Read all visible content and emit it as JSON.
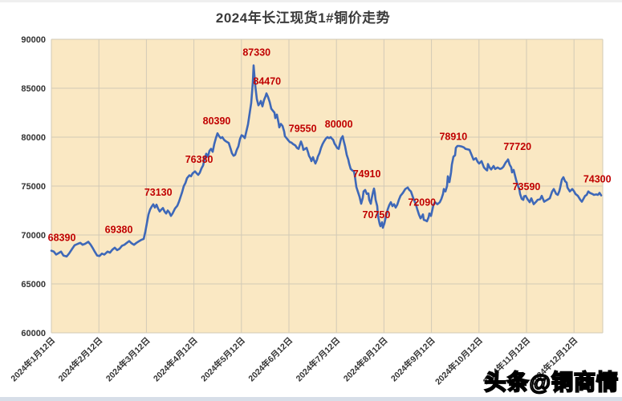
{
  "title": "2024年长江现货1#铜价走势",
  "watermark": "头条@铜商情",
  "chart_data": {
    "type": "line",
    "title": "2024年长江现货1#铜价走势",
    "series_name": "长江现货1#铜价",
    "ylim": [
      60000,
      90000
    ],
    "ytick_step": 5000,
    "yticks": [
      90000,
      85000,
      80000,
      75000,
      70000,
      65000,
      60000
    ],
    "xtick_labels": [
      "2024年1月12日",
      "2024年2月12日",
      "2024年3月12日",
      "2024年4月12日",
      "2024年5月12日",
      "2024年6月12日",
      "2024年7月12日",
      "2024年8月12日",
      "2024年9月12日",
      "2024年10月12日",
      "2024年11月12日",
      "2024年12月12日"
    ],
    "x_unit": "months_since_2024-01-12",
    "x_range": [
      0,
      11.6
    ],
    "grid": true,
    "legend": "none",
    "colors": {
      "line": "#3e68b8",
      "data_label": "#c00000",
      "plot_bg": "#fae8c3",
      "gridline": "#d2cab6",
      "axis_text": "#333333",
      "title_text": "#3b3b3b"
    },
    "key_points": [
      {
        "label": "68390",
        "value": 68390
      },
      {
        "label": "69380",
        "value": 69380
      },
      {
        "label": "73130",
        "value": 73130
      },
      {
        "label": "76380",
        "value": 76380
      },
      {
        "label": "80390",
        "value": 80390
      },
      {
        "label": "87330",
        "value": 87330
      },
      {
        "label": "84470",
        "value": 84470
      },
      {
        "label": "79550",
        "value": 79550
      },
      {
        "label": "80000",
        "value": 80000
      },
      {
        "label": "74910",
        "value": 74910
      },
      {
        "label": "70750",
        "value": 70750
      },
      {
        "label": "72090",
        "value": 72090
      },
      {
        "label": "78910",
        "value": 78910
      },
      {
        "label": "77720",
        "value": 77720
      },
      {
        "label": "73590",
        "value": 73590
      },
      {
        "label": "74300",
        "value": 74300
      }
    ],
    "data_labels": [
      {
        "text": "68390",
        "m": 0.22,
        "value": 68390,
        "dy": -16
      },
      {
        "text": "69380",
        "m": 1.42,
        "value": 69380,
        "dy": -14
      },
      {
        "text": "73130",
        "m": 2.25,
        "value": 73130,
        "dy": -15
      },
      {
        "text": "76380",
        "m": 3.11,
        "value": 76380,
        "dy": -16
      },
      {
        "text": "80390",
        "m": 3.48,
        "value": 80390,
        "dy": -15
      },
      {
        "text": "87330",
        "m": 4.32,
        "value": 87330,
        "dy": -16
      },
      {
        "text": "84470",
        "m": 4.54,
        "value": 84470,
        "dy": -15
      },
      {
        "text": "79550",
        "m": 5.29,
        "value": 79550,
        "dy": -16
      },
      {
        "text": "80000",
        "m": 6.05,
        "value": 80000,
        "dy": -16
      },
      {
        "text": "74910",
        "m": 6.64,
        "value": 74910,
        "dy": -16
      },
      {
        "text": "70750",
        "m": 6.84,
        "value": 70750,
        "dy": -16
      },
      {
        "text": "72090",
        "m": 7.8,
        "value": 72090,
        "dy": -15
      },
      {
        "text": "78910",
        "m": 8.46,
        "value": 78910,
        "dy": -14
      },
      {
        "text": "77720",
        "m": 9.81,
        "value": 77720,
        "dy": -16
      },
      {
        "text": "73590",
        "m": 10.0,
        "value": 73590,
        "dy": -16
      },
      {
        "text": "74300",
        "m": 11.49,
        "value": 74300,
        "dy": -17
      }
    ],
    "points": [
      [
        0.0,
        68390
      ],
      [
        0.051,
        68300
      ],
      [
        0.101,
        68000
      ],
      [
        0.152,
        68150
      ],
      [
        0.203,
        68300
      ],
      [
        0.253,
        67900
      ],
      [
        0.321,
        67800
      ],
      [
        0.372,
        68100
      ],
      [
        0.439,
        68600
      ],
      [
        0.49,
        68950
      ],
      [
        0.557,
        69100
      ],
      [
        0.608,
        69200
      ],
      [
        0.659,
        69000
      ],
      [
        0.709,
        69100
      ],
      [
        0.777,
        69300
      ],
      [
        0.828,
        69000
      ],
      [
        0.878,
        68600
      ],
      [
        0.912,
        68300
      ],
      [
        0.963,
        67900
      ],
      [
        1.014,
        67850
      ],
      [
        1.064,
        68100
      ],
      [
        1.115,
        68000
      ],
      [
        1.182,
        68300
      ],
      [
        1.233,
        68200
      ],
      [
        1.284,
        68500
      ],
      [
        1.334,
        68700
      ],
      [
        1.385,
        68450
      ],
      [
        1.436,
        68600
      ],
      [
        1.486,
        68900
      ],
      [
        1.537,
        69000
      ],
      [
        1.588,
        69200
      ],
      [
        1.639,
        69380
      ],
      [
        1.689,
        69150
      ],
      [
        1.74,
        69000
      ],
      [
        1.791,
        69200
      ],
      [
        1.841,
        69350
      ],
      [
        1.892,
        69500
      ],
      [
        1.943,
        69600
      ],
      [
        1.976,
        70300
      ],
      [
        2.01,
        71200
      ],
      [
        2.044,
        72100
      ],
      [
        2.078,
        72600
      ],
      [
        2.111,
        72900
      ],
      [
        2.145,
        73130
      ],
      [
        2.179,
        72800
      ],
      [
        2.213,
        73100
      ],
      [
        2.247,
        72700
      ],
      [
        2.28,
        72400
      ],
      [
        2.314,
        72600
      ],
      [
        2.348,
        72750
      ],
      [
        2.382,
        72400
      ],
      [
        2.416,
        72200
      ],
      [
        2.449,
        72500
      ],
      [
        2.483,
        72300
      ],
      [
        2.517,
        71950
      ],
      [
        2.551,
        72200
      ],
      [
        2.601,
        72700
      ],
      [
        2.652,
        73000
      ],
      [
        2.686,
        73400
      ],
      [
        2.72,
        73900
      ],
      [
        2.753,
        74400
      ],
      [
        2.787,
        75000
      ],
      [
        2.821,
        75300
      ],
      [
        2.855,
        75800
      ],
      [
        2.905,
        76100
      ],
      [
        2.939,
        76000
      ],
      [
        2.973,
        76300
      ],
      [
        3.024,
        76500
      ],
      [
        3.057,
        76300
      ],
      [
        3.091,
        76150
      ],
      [
        3.125,
        76380
      ],
      [
        3.159,
        76800
      ],
      [
        3.193,
        77100
      ],
      [
        3.226,
        77800
      ],
      [
        3.26,
        78300
      ],
      [
        3.294,
        78000
      ],
      [
        3.328,
        78600
      ],
      [
        3.361,
        78800
      ],
      [
        3.395,
        78500
      ],
      [
        3.429,
        79300
      ],
      [
        3.463,
        79900
      ],
      [
        3.497,
        80390
      ],
      [
        3.53,
        80100
      ],
      [
        3.564,
        79900
      ],
      [
        3.598,
        80000
      ],
      [
        3.632,
        79750
      ],
      [
        3.666,
        79600
      ],
      [
        3.699,
        79500
      ],
      [
        3.733,
        79400
      ],
      [
        3.767,
        78900
      ],
      [
        3.801,
        78350
      ],
      [
        3.834,
        78100
      ],
      [
        3.868,
        78200
      ],
      [
        3.902,
        78700
      ],
      [
        3.936,
        79050
      ],
      [
        3.97,
        79800
      ],
      [
        4.003,
        80200
      ],
      [
        4.037,
        80100
      ],
      [
        4.071,
        79900
      ],
      [
        4.105,
        80600
      ],
      [
        4.139,
        81300
      ],
      [
        4.172,
        82400
      ],
      [
        4.206,
        83500
      ],
      [
        4.223,
        84550
      ],
      [
        4.24,
        85600
      ],
      [
        4.257,
        87330
      ],
      [
        4.274,
        86300
      ],
      [
        4.291,
        85300
      ],
      [
        4.307,
        84600
      ],
      [
        4.324,
        83900
      ],
      [
        4.358,
        83250
      ],
      [
        4.392,
        83500
      ],
      [
        4.409,
        83700
      ],
      [
        4.443,
        83150
      ],
      [
        4.476,
        83800
      ],
      [
        4.51,
        84200
      ],
      [
        4.527,
        84470
      ],
      [
        4.561,
        84100
      ],
      [
        4.595,
        83600
      ],
      [
        4.628,
        82900
      ],
      [
        4.662,
        82700
      ],
      [
        4.696,
        82500
      ],
      [
        4.713,
        81950
      ],
      [
        4.747,
        82300
      ],
      [
        4.78,
        81500
      ],
      [
        4.797,
        81000
      ],
      [
        4.831,
        81350
      ],
      [
        4.865,
        81150
      ],
      [
        4.899,
        80600
      ],
      [
        4.916,
        80100
      ],
      [
        4.949,
        79900
      ],
      [
        4.983,
        79700
      ],
      [
        5.017,
        79500
      ],
      [
        5.051,
        79450
      ],
      [
        5.084,
        79300
      ],
      [
        5.135,
        79150
      ],
      [
        5.169,
        78900
      ],
      [
        5.203,
        78800
      ],
      [
        5.236,
        79300
      ],
      [
        5.253,
        79550
      ],
      [
        5.287,
        79100
      ],
      [
        5.304,
        78700
      ],
      [
        5.338,
        78800
      ],
      [
        5.372,
        78900
      ],
      [
        5.405,
        78400
      ],
      [
        5.422,
        78100
      ],
      [
        5.456,
        77800
      ],
      [
        5.473,
        77550
      ],
      [
        5.507,
        77950
      ],
      [
        5.524,
        77700
      ],
      [
        5.557,
        77300
      ],
      [
        5.591,
        77700
      ],
      [
        5.608,
        78000
      ],
      [
        5.642,
        78350
      ],
      [
        5.676,
        78900
      ],
      [
        5.709,
        79300
      ],
      [
        5.743,
        79600
      ],
      [
        5.777,
        79850
      ],
      [
        5.811,
        80000
      ],
      [
        5.845,
        79900
      ],
      [
        5.878,
        80000
      ],
      [
        5.912,
        79800
      ],
      [
        5.929,
        79750
      ],
      [
        5.963,
        79300
      ],
      [
        5.98,
        79200
      ],
      [
        6.014,
        78900
      ],
      [
        6.047,
        78800
      ],
      [
        6.081,
        79500
      ],
      [
        6.098,
        79850
      ],
      [
        6.132,
        80100
      ],
      [
        6.149,
        79700
      ],
      [
        6.182,
        79050
      ],
      [
        6.216,
        78200
      ],
      [
        6.25,
        77700
      ],
      [
        6.267,
        77300
      ],
      [
        6.301,
        76750
      ],
      [
        6.334,
        76600
      ],
      [
        6.368,
        76500
      ],
      [
        6.385,
        76100
      ],
      [
        6.419,
        74910
      ],
      [
        6.453,
        74400
      ],
      [
        6.486,
        73900
      ],
      [
        6.52,
        73200
      ],
      [
        6.554,
        73800
      ],
      [
        6.571,
        74450
      ],
      [
        6.605,
        74600
      ],
      [
        6.639,
        74200
      ],
      [
        6.672,
        74250
      ],
      [
        6.689,
        73600
      ],
      [
        6.723,
        73200
      ],
      [
        6.74,
        73700
      ],
      [
        6.774,
        74450
      ],
      [
        6.791,
        74750
      ],
      [
        6.807,
        74300
      ],
      [
        6.824,
        73600
      ],
      [
        6.858,
        72950
      ],
      [
        6.875,
        71950
      ],
      [
        6.909,
        71150
      ],
      [
        6.926,
        70900
      ],
      [
        6.959,
        71300
      ],
      [
        6.976,
        70750
      ],
      [
        7.01,
        71200
      ],
      [
        7.044,
        71950
      ],
      [
        7.078,
        72600
      ],
      [
        7.111,
        73050
      ],
      [
        7.145,
        73350
      ],
      [
        7.179,
        72950
      ],
      [
        7.213,
        73150
      ],
      [
        7.246,
        72800
      ],
      [
        7.28,
        73100
      ],
      [
        7.314,
        73600
      ],
      [
        7.348,
        74000
      ],
      [
        7.399,
        74300
      ],
      [
        7.449,
        74700
      ],
      [
        7.5,
        74850
      ],
      [
        7.534,
        74600
      ],
      [
        7.568,
        74450
      ],
      [
        7.618,
        73750
      ],
      [
        7.669,
        73150
      ],
      [
        7.703,
        72600
      ],
      [
        7.736,
        72090
      ],
      [
        7.77,
        71700
      ],
      [
        7.821,
        72100
      ],
      [
        7.838,
        71550
      ],
      [
        7.872,
        71500
      ],
      [
        7.905,
        71400
      ],
      [
        7.939,
        71800
      ],
      [
        7.956,
        72200
      ],
      [
        7.99,
        71950
      ],
      [
        8.041,
        73050
      ],
      [
        8.074,
        73350
      ],
      [
        8.125,
        73150
      ],
      [
        8.176,
        73350
      ],
      [
        8.209,
        73700
      ],
      [
        8.243,
        74200
      ],
      [
        8.26,
        74700
      ],
      [
        8.294,
        74450
      ],
      [
        8.328,
        75000
      ],
      [
        8.345,
        76000
      ],
      [
        8.378,
        75400
      ],
      [
        8.412,
        76400
      ],
      [
        8.429,
        77200
      ],
      [
        8.463,
        78000
      ],
      [
        8.497,
        78150
      ],
      [
        8.514,
        78910
      ],
      [
        8.547,
        79100
      ],
      [
        8.581,
        79100
      ],
      [
        8.632,
        79050
      ],
      [
        8.682,
        78950
      ],
      [
        8.716,
        78800
      ],
      [
        8.767,
        78750
      ],
      [
        8.801,
        78700
      ],
      [
        8.834,
        78300
      ],
      [
        8.851,
        78100
      ],
      [
        8.885,
        77700
      ],
      [
        8.936,
        77850
      ],
      [
        8.97,
        77500
      ],
      [
        9.003,
        77300
      ],
      [
        9.054,
        77550
      ],
      [
        9.105,
        76900
      ],
      [
        9.155,
        76650
      ],
      [
        9.172,
        76600
      ],
      [
        9.189,
        77250
      ],
      [
        9.223,
        76900
      ],
      [
        9.257,
        76700
      ],
      [
        9.307,
        77050
      ],
      [
        9.341,
        76750
      ],
      [
        9.392,
        76900
      ],
      [
        9.443,
        76750
      ],
      [
        9.476,
        76800
      ],
      [
        9.51,
        76950
      ],
      [
        9.561,
        77400
      ],
      [
        9.595,
        77600
      ],
      [
        9.611,
        77720
      ],
      [
        9.645,
        77200
      ],
      [
        9.679,
        76900
      ],
      [
        9.696,
        76400
      ],
      [
        9.73,
        76650
      ],
      [
        9.747,
        76300
      ],
      [
        9.78,
        75650
      ],
      [
        9.814,
        75100
      ],
      [
        9.848,
        74700
      ],
      [
        9.865,
        74200
      ],
      [
        9.899,
        73700
      ],
      [
        9.932,
        73590
      ],
      [
        9.949,
        73950
      ],
      [
        9.983,
        74000
      ],
      [
        10.017,
        73700
      ],
      [
        10.068,
        73350
      ],
      [
        10.101,
        73750
      ],
      [
        10.152,
        73150
      ],
      [
        10.203,
        73400
      ],
      [
        10.236,
        73600
      ],
      [
        10.287,
        73650
      ],
      [
        10.321,
        74000
      ],
      [
        10.372,
        73400
      ],
      [
        10.405,
        73500
      ],
      [
        10.439,
        73600
      ],
      [
        10.49,
        73750
      ],
      [
        10.541,
        74450
      ],
      [
        10.574,
        74700
      ],
      [
        10.625,
        74200
      ],
      [
        10.659,
        74100
      ],
      [
        10.693,
        74500
      ],
      [
        10.709,
        74850
      ],
      [
        10.743,
        75650
      ],
      [
        10.777,
        75900
      ],
      [
        10.811,
        75500
      ],
      [
        10.845,
        75350
      ],
      [
        10.861,
        74850
      ],
      [
        10.912,
        74450
      ],
      [
        10.963,
        74700
      ],
      [
        10.997,
        74500
      ],
      [
        11.03,
        74200
      ],
      [
        11.081,
        74000
      ],
      [
        11.132,
        73600
      ],
      [
        11.166,
        73400
      ],
      [
        11.199,
        73700
      ],
      [
        11.233,
        74000
      ],
      [
        11.267,
        74100
      ],
      [
        11.301,
        74450
      ],
      [
        11.334,
        74300
      ],
      [
        11.385,
        74200
      ],
      [
        11.419,
        74100
      ],
      [
        11.47,
        74150
      ],
      [
        11.503,
        74100
      ],
      [
        11.537,
        74300
      ],
      [
        11.571,
        74050
      ]
    ]
  }
}
